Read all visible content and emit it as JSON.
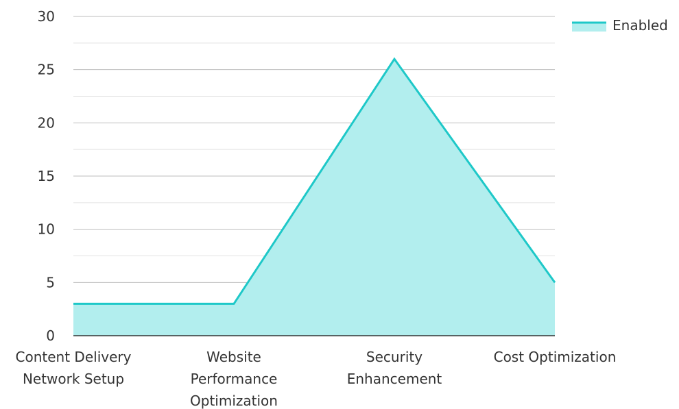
{
  "chart_data": {
    "type": "area",
    "categories": [
      [
        "Content Delivery",
        "Network Setup"
      ],
      [
        "Website",
        "Performance",
        "Optimization"
      ],
      [
        "Security",
        "Enhancement"
      ],
      [
        "Cost Optimization"
      ]
    ],
    "series": [
      {
        "name": "Enabled",
        "values": [
          3,
          3,
          26,
          5
        ]
      }
    ],
    "ylim": [
      0,
      30
    ],
    "y_ticks": [
      0,
      5,
      10,
      15,
      20,
      25,
      30
    ],
    "grid": true,
    "legend_position": "top-right",
    "colors": {
      "line": "#1ec8c8",
      "fill": "#b2eeee",
      "grid_major": "#bdbdbd",
      "grid_minor": "#e2e2e2",
      "axis": "#333333"
    }
  }
}
